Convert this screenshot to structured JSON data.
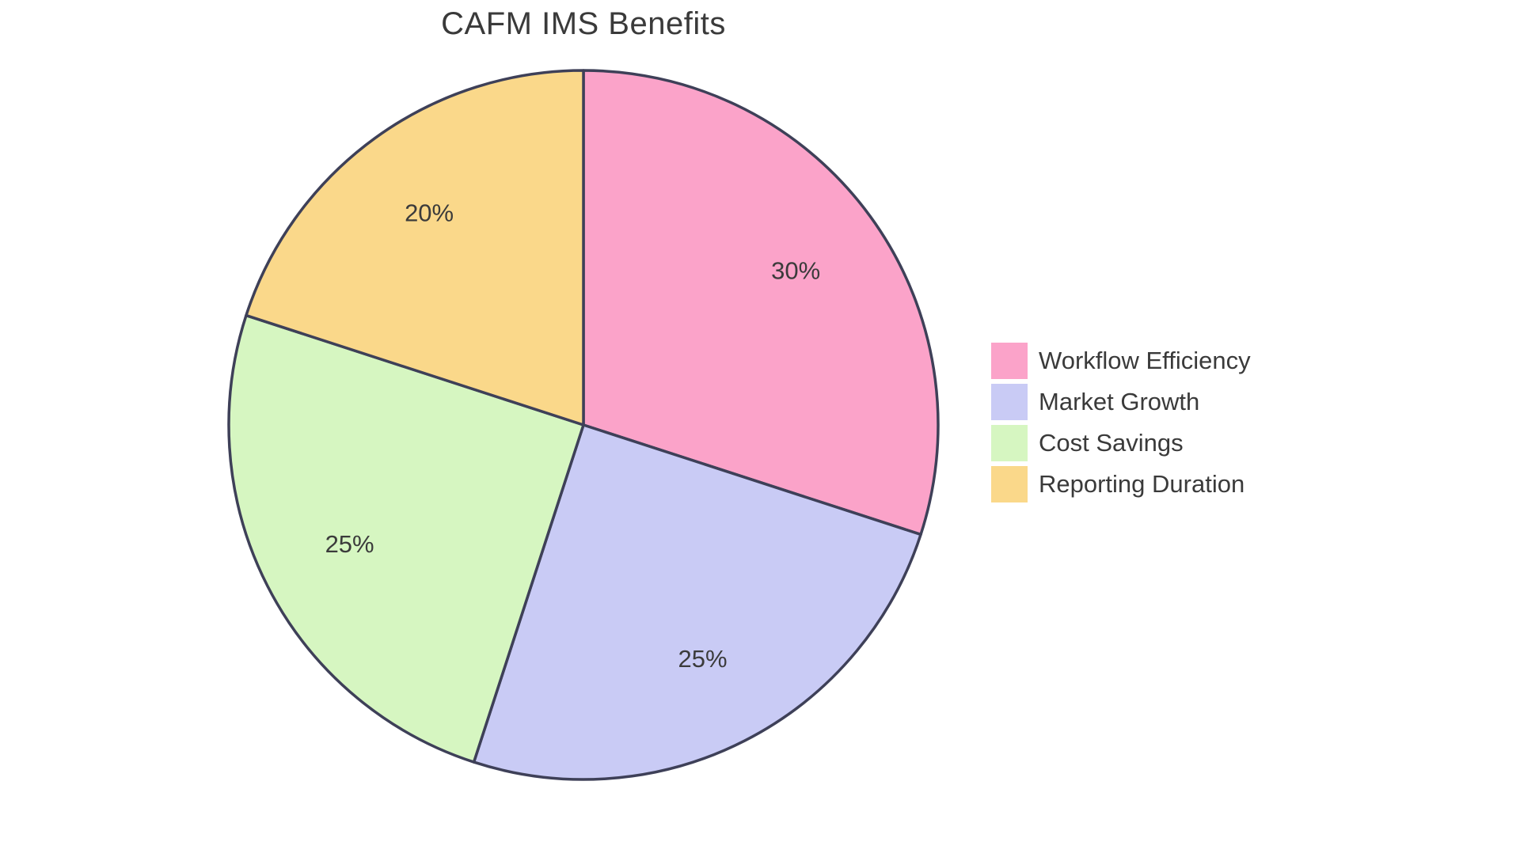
{
  "chart_data": {
    "type": "pie",
    "title": "CAFM IMS Benefits",
    "start_angle": "12 o'clock",
    "direction": "clockwise",
    "legend_position": "right",
    "slices": [
      {
        "label": "Workflow Efficiency",
        "value": 30,
        "display": "30%",
        "color": "#FBA3C9"
      },
      {
        "label": "Market Growth",
        "value": 25,
        "display": "25%",
        "color": "#C9CBF5"
      },
      {
        "label": "Cost Savings",
        "value": 25,
        "display": "25%",
        "color": "#D6F6C1"
      },
      {
        "label": "Reporting Duration",
        "value": 20,
        "display": "20%",
        "color": "#FAD88A"
      }
    ]
  },
  "style": {
    "outline_color": "#3E4058",
    "outline_width": 3.5,
    "label_color": "#3b3b3b",
    "title_color": "#3a3a3a",
    "background": "#ffffff"
  }
}
